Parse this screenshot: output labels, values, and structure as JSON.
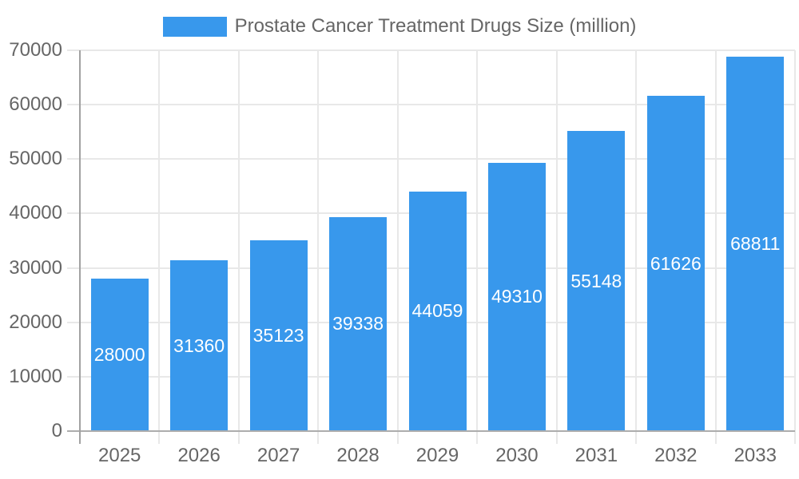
{
  "legend": {
    "label": "Prostate Cancer Treatment Drugs Size (million)",
    "swatch_color": "#3898EC"
  },
  "chart_data": {
    "type": "bar",
    "title": "Prostate Cancer Treatment Drugs Size (million)",
    "categories": [
      "2025",
      "2026",
      "2027",
      "2028",
      "2029",
      "2030",
      "2031",
      "2032",
      "2033"
    ],
    "series": [
      {
        "name": "Prostate Cancer Treatment Drugs Size (million)",
        "values": [
          28000,
          31360,
          35123,
          39338,
          44059,
          49310,
          55148,
          61626,
          68811
        ]
      }
    ],
    "xlabel": "",
    "ylabel": "",
    "ylim": [
      0,
      70000
    ],
    "yticks": [
      0,
      10000,
      20000,
      30000,
      40000,
      50000,
      60000,
      70000
    ],
    "grid": true,
    "legend_position": "top",
    "bar_color": "#3898EC",
    "value_label_color": "#FFFFFF",
    "gridline_color": "#E8E8E8",
    "axis_line_color": "#ADADAD",
    "text_color": "#666666",
    "background_color": "#FFFFFF"
  }
}
